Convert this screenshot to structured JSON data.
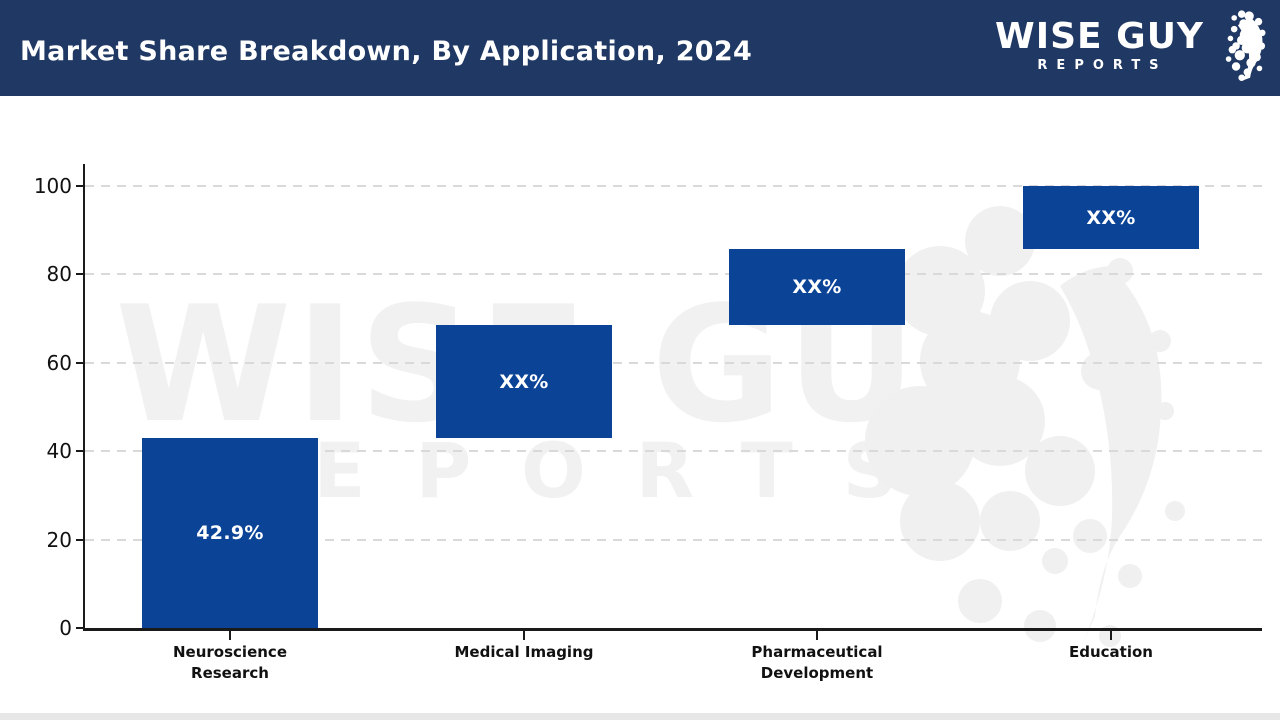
{
  "header": {
    "title": "Market Share Breakdown, By Application, 2024",
    "bg_color": "#1F3864",
    "logo": {
      "line1": "WISE GUY",
      "line2": "REPORTS"
    }
  },
  "watermark": {
    "line1": "WISE GUY",
    "line2": "REPORTS"
  },
  "chart_data": {
    "type": "bar",
    "variant": "waterfall",
    "title": "Market Share Breakdown, By Application, 2024",
    "categories": [
      "Neuroscience Research",
      "Medical Imaging",
      "Pharmaceutical Development",
      "Education"
    ],
    "category_label_lines": [
      [
        "Neuroscience",
        "Research"
      ],
      [
        "Medical Imaging"
      ],
      [
        "Pharmaceutical",
        "Development"
      ],
      [
        "Education"
      ]
    ],
    "segments": [
      {
        "category": "Neuroscience Research",
        "start": 0,
        "end": 42.9,
        "label": "42.9%"
      },
      {
        "category": "Medical Imaging",
        "start": 42.9,
        "end": 68.6,
        "label": "XX%"
      },
      {
        "category": "Pharmaceutical Development",
        "start": 68.6,
        "end": 85.7,
        "label": "XX%"
      },
      {
        "category": "Education",
        "start": 85.7,
        "end": 100,
        "label": "XX%"
      }
    ],
    "ylim": [
      0,
      100
    ],
    "yticks": [
      0,
      20,
      40,
      60,
      80,
      100
    ],
    "grid": {
      "horizontal": true,
      "style": "dashed",
      "color": "#d9d9d9"
    },
    "legend": "none",
    "bar_color": "#0B4397",
    "bar_label_color": "#ffffff",
    "axis_color": "#1a1a1a"
  },
  "colors": {
    "header_bg": "#1F3864",
    "bar_blue": "#0B4397",
    "watermark_gray": "#f1f1f1",
    "footer_strip": "#e7e7e7"
  }
}
